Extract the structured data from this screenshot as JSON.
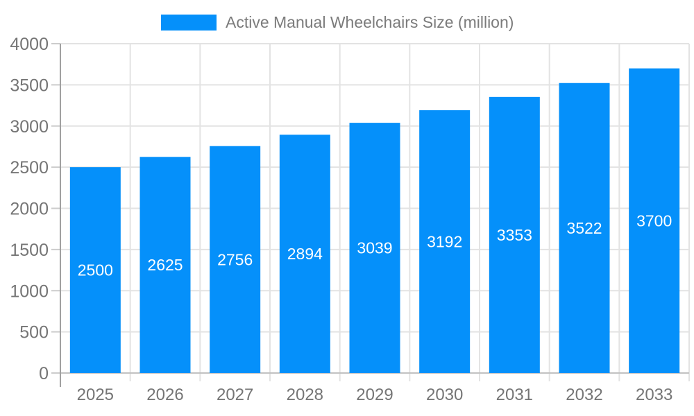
{
  "legend": {
    "label": "Active Manual Wheelchairs Size (million)"
  },
  "chart_data": {
    "type": "bar",
    "title": "Active Manual Wheelchairs Size (million)",
    "legend_position": "top",
    "grid": true,
    "categories": [
      "2025",
      "2026",
      "2027",
      "2028",
      "2029",
      "2030",
      "2031",
      "2032",
      "2033"
    ],
    "series": [
      {
        "name": "Active Manual Wheelchairs Size (million)",
        "values": [
          2500,
          2625,
          2756,
          2894,
          3039,
          3192,
          3353,
          3522,
          3700
        ]
      }
    ],
    "bar_value_labels": [
      "2500",
      "2625",
      "2756",
      "2894",
      "3039",
      "3192",
      "3353",
      "3522",
      "3700"
    ],
    "xlabel": "",
    "ylabel": "",
    "ylim": [
      0,
      4000
    ],
    "yticks": [
      0,
      500,
      1000,
      1500,
      2000,
      2500,
      3000,
      3500,
      4000
    ],
    "colors": {
      "bar": "#0590fa",
      "grid": "#e3e3e3",
      "axis_line": "#a0a0a0",
      "baseline": "#c2c2c2",
      "tick": "#cccccc",
      "axis_text": "#757575",
      "bar_label_text": "#ffffff",
      "legend_text": "#7b7b7b"
    }
  }
}
